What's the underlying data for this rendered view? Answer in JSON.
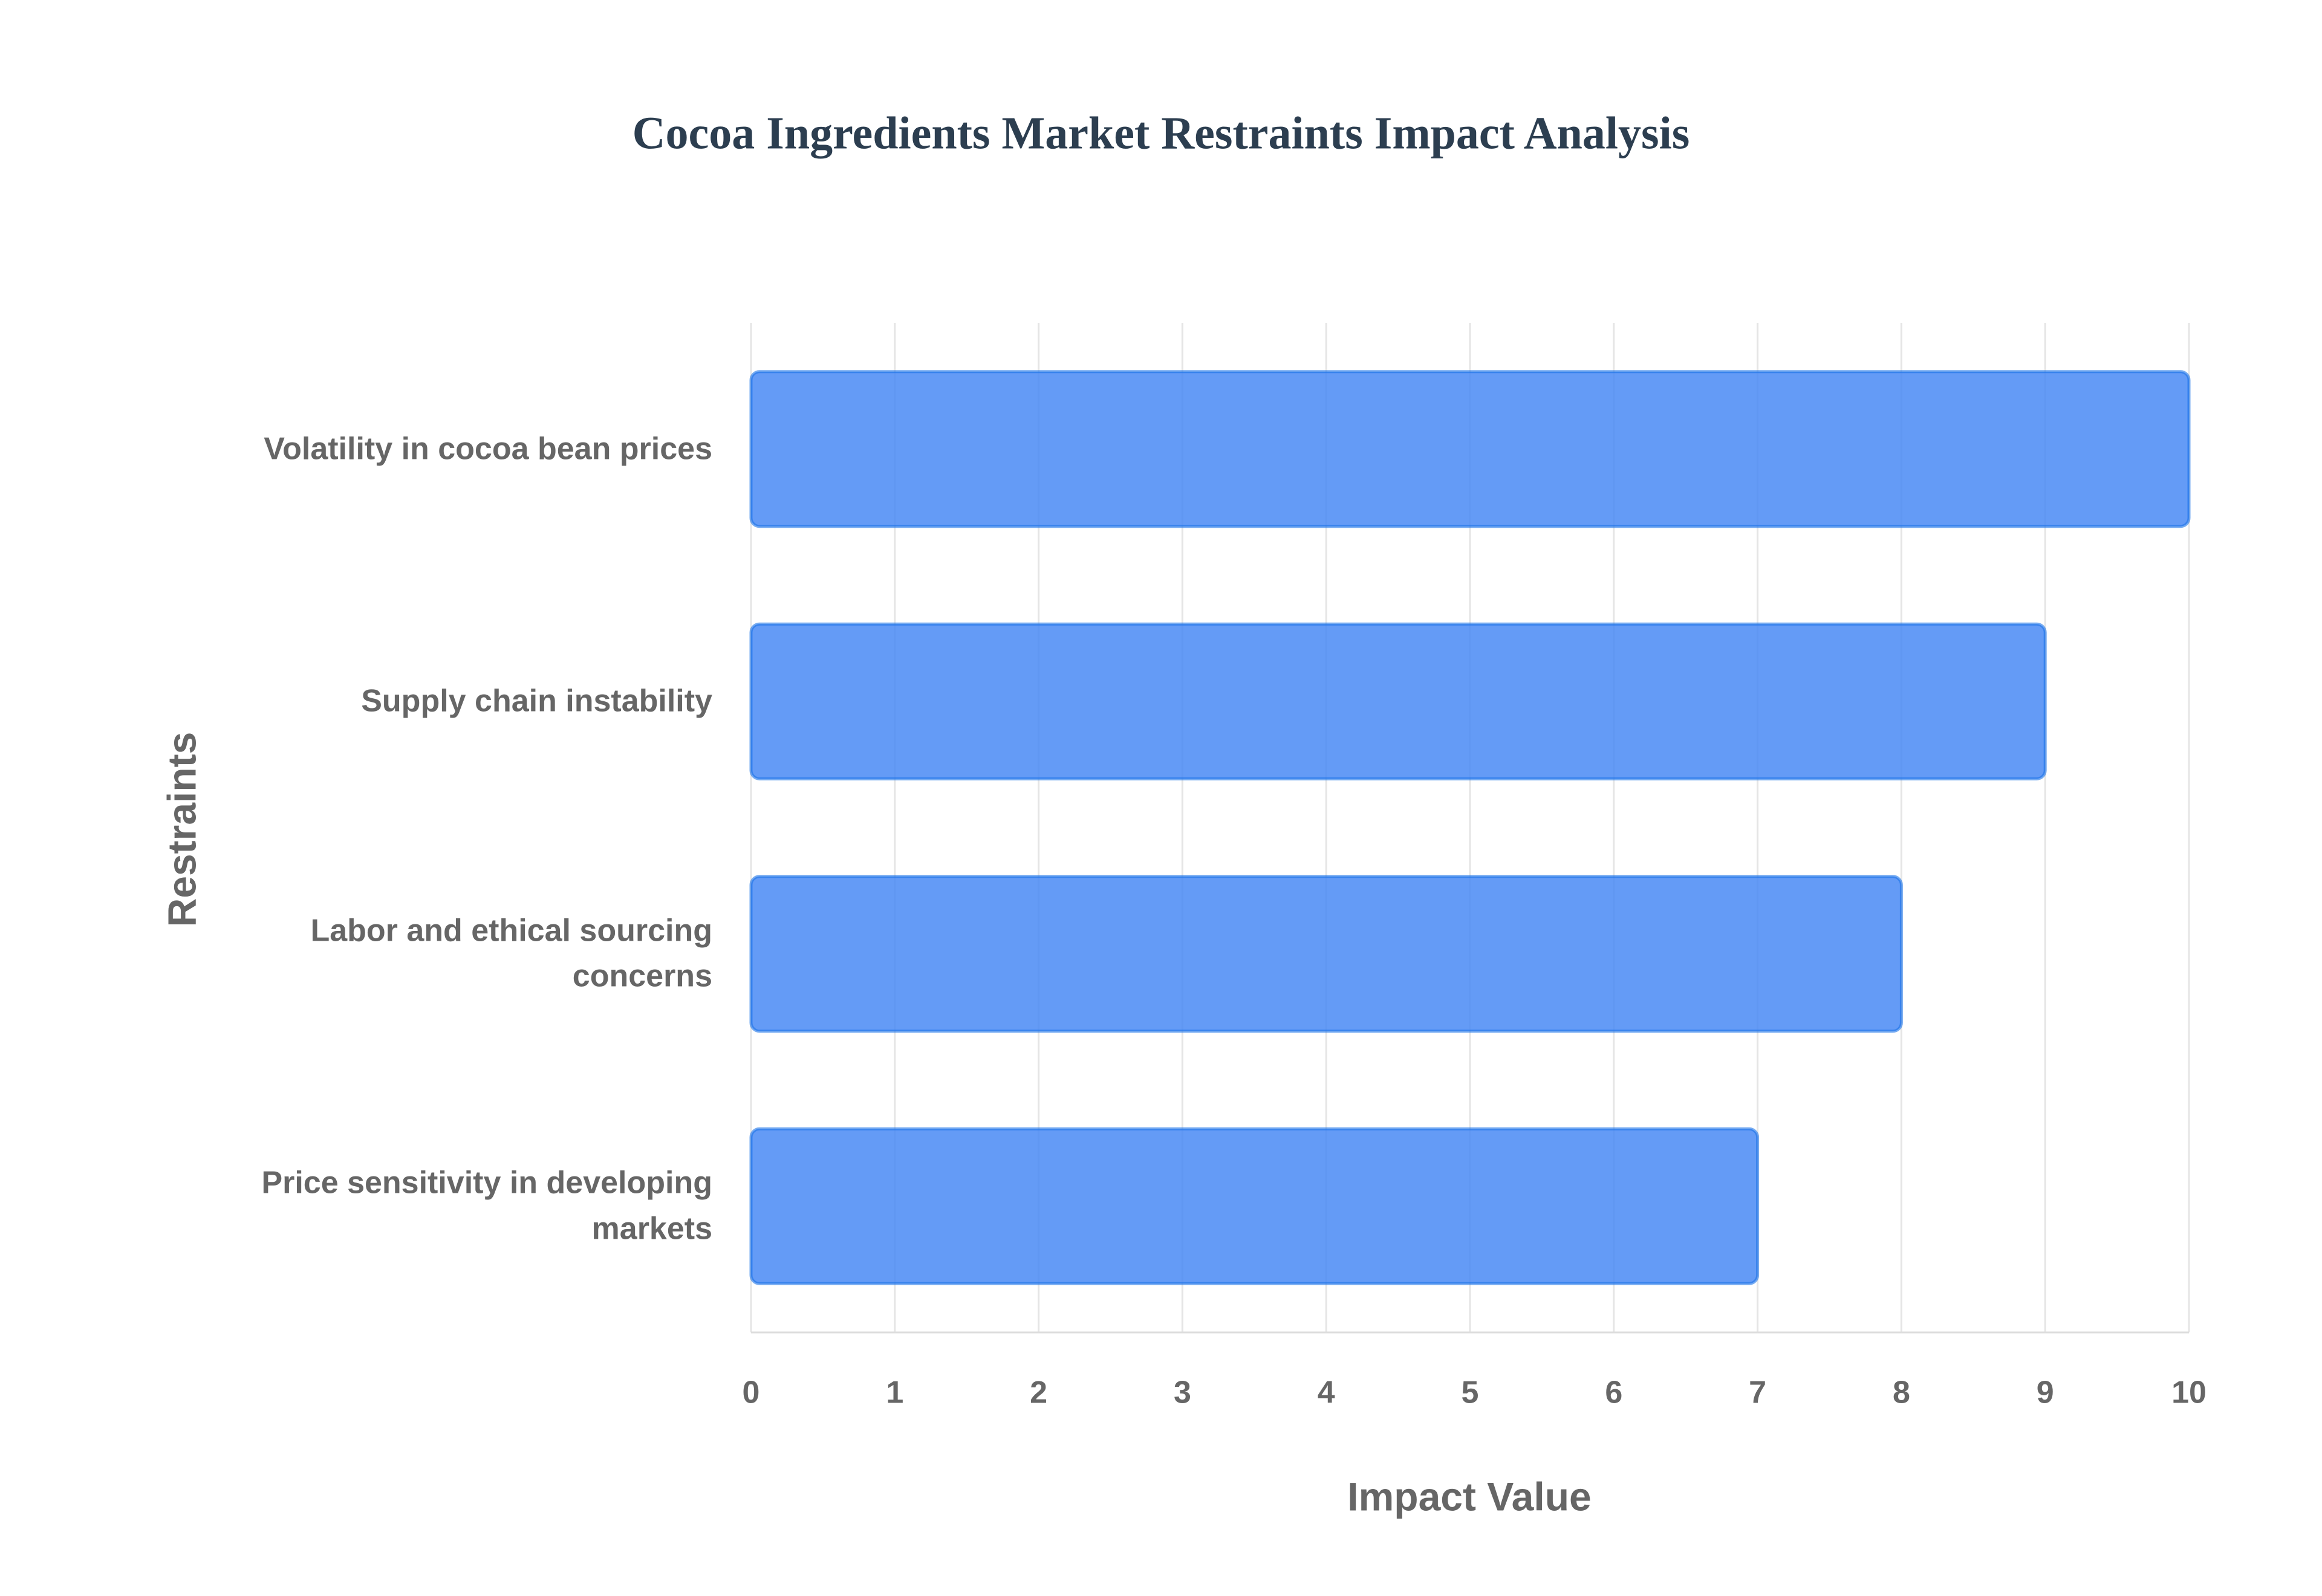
{
  "chart_data": {
    "type": "bar",
    "orientation": "horizontal",
    "title": "Cocoa Ingredients Market Restraints Impact Analysis",
    "xlabel": "Impact Value",
    "ylabel": "Restraints",
    "categories": [
      "Volatility in cocoa bean prices",
      "Supply chain instability",
      "Labor and ethical sourcing concerns",
      "Price sensitivity in developing markets"
    ],
    "values": [
      10,
      9,
      8,
      7
    ],
    "color": "#4285f4",
    "xlim": [
      0,
      10
    ],
    "xticks": [
      0,
      1,
      2,
      3,
      4,
      5,
      6,
      7,
      8,
      9,
      10
    ],
    "grid": true
  }
}
